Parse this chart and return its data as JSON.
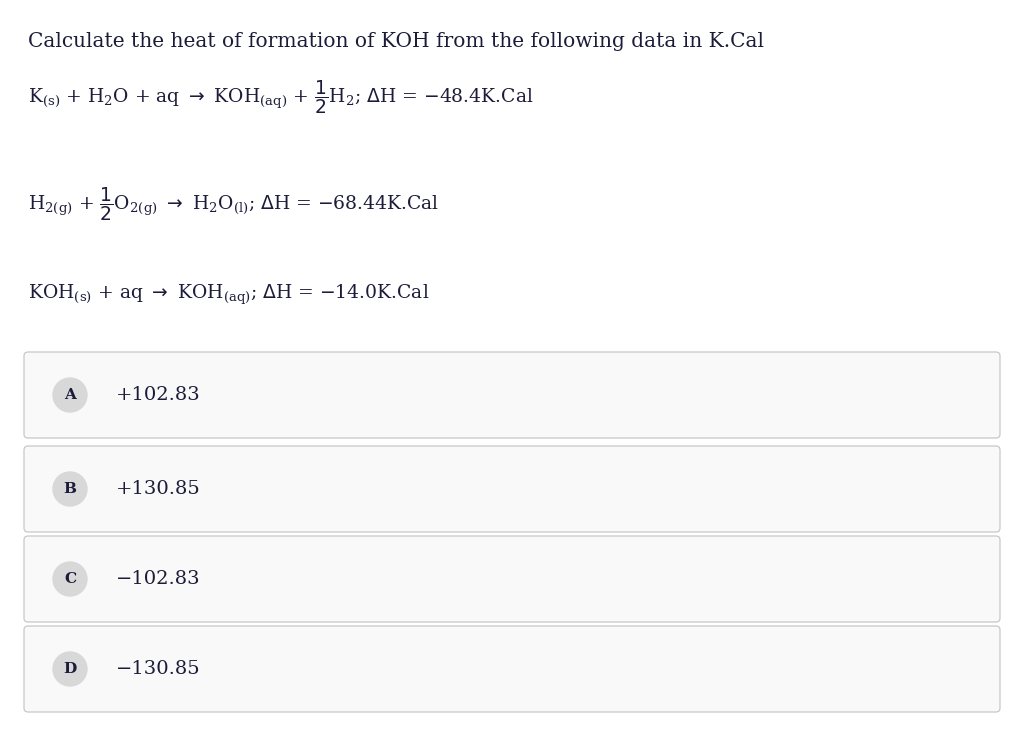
{
  "title": "Calculate the heat of formation of KOH from the following data in K.Cal",
  "options": [
    {
      "label": "A",
      "value": "+102.83"
    },
    {
      "label": "B",
      "value": "+130.85"
    },
    {
      "label": "C",
      "value": "−102.83"
    },
    {
      "label": "D",
      "value": "−130.85"
    }
  ],
  "bg_color": "#ffffff",
  "text_color": "#1c1c3a",
  "box_facecolor": "#f9f9f9",
  "box_edgecolor": "#c8c8c8",
  "badge_color": "#d8d8d8",
  "title_fontsize": 14.5,
  "eq_fontsize": 13.5,
  "option_fontsize": 14,
  "badge_fontsize": 11
}
